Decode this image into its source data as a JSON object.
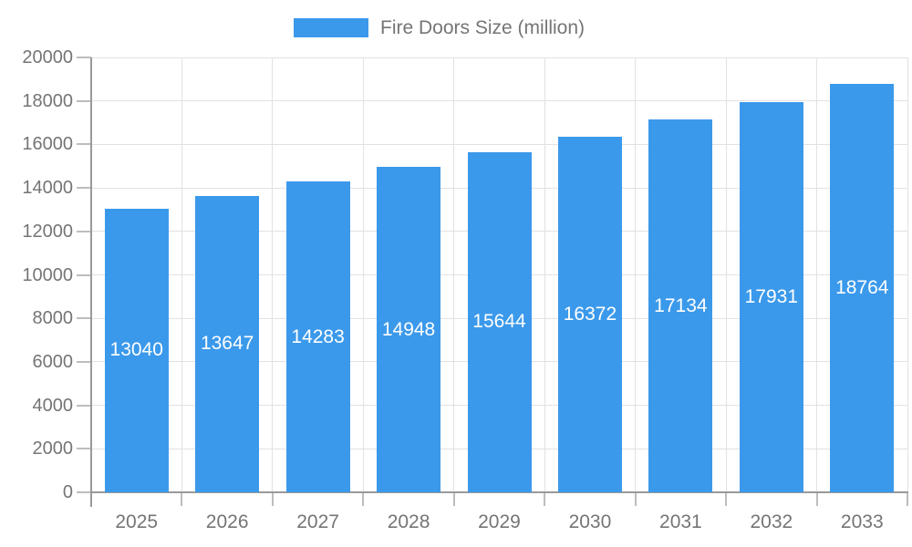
{
  "chart_data": {
    "type": "bar",
    "title": "",
    "legend": "Fire Doors Size (million)",
    "legend_position": "top",
    "categories": [
      "2025",
      "2026",
      "2027",
      "2028",
      "2029",
      "2030",
      "2031",
      "2032",
      "2033"
    ],
    "values": [
      13040,
      13647,
      14283,
      14948,
      15644,
      16372,
      17134,
      17931,
      18764
    ],
    "value_labels": [
      "13040",
      "13647",
      "14283",
      "14948",
      "15644",
      "16372",
      "17134",
      "17931",
      "18764"
    ],
    "xlabel": "",
    "ylabel": "",
    "ylim": [
      0,
      20000
    ],
    "ytick_step": 2000,
    "ytick_labels": [
      "0",
      "2000",
      "4000",
      "6000",
      "8000",
      "10000",
      "12000",
      "14000",
      "16000",
      "18000",
      "20000"
    ],
    "grid": true,
    "colors": {
      "bar": "#3B99EB",
      "grid_line": "#e2e2e2",
      "axis_line": "#999999",
      "tick_mark": "#bdbdbd",
      "axis_text": "#757575",
      "legend_text": "#757575",
      "bar_label_text": "#ffffff",
      "background": "#ffffff"
    }
  }
}
